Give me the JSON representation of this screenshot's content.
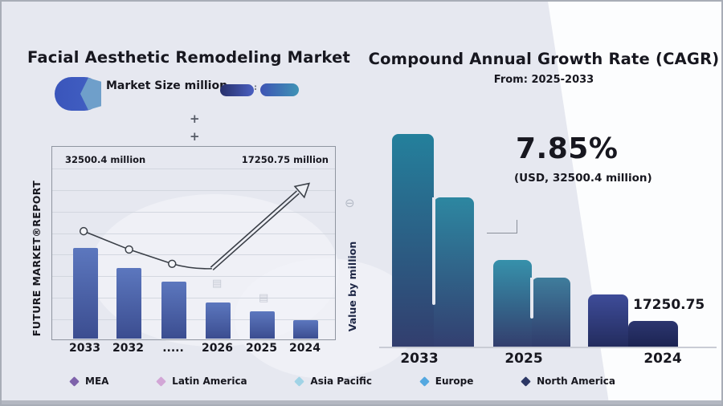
{
  "infographic": {
    "left": {
      "title": "Facial Aesthetic Remodeling Market",
      "market_size_label": "Market Size million",
      "annotation_left": "32500.4 million",
      "annotation_right": "17250.75 million",
      "watermark_vertical": "FUTURE MARKET®REPORT",
      "ylabel": "Value by million",
      "plus_glyph": "+",
      "table_icon_glyph": "▤",
      "circled_minus_glyph": "⊖"
    },
    "right": {
      "title": "Compound Annual Growth Rate (CAGR)",
      "subtitle": "From: 2025-2033",
      "cagr_value": "7.85%",
      "cagr_context": "(USD, 32500.4 million)",
      "value_2024_label": "17250.75"
    },
    "legend": [
      {
        "label": "MEA",
        "color": "#7e62ab"
      },
      {
        "label": "Latin America",
        "color": "#d2a6d6"
      },
      {
        "label": "Asia Pacific",
        "color": "#a0d3e6"
      },
      {
        "label": "Europe",
        "color": "#54a8e0"
      },
      {
        "label": "North America",
        "color": "#2c3765"
      }
    ]
  },
  "chart_data": [
    {
      "type": "bar",
      "title": "Facial Aesthetic Remodeling Market",
      "xlabel": "",
      "ylabel": "Value by million",
      "categories": [
        "2033",
        "2032",
        ".....",
        "2026",
        "2025",
        "2024"
      ],
      "values": [
        113,
        88,
        71,
        45,
        34,
        23
      ],
      "values_unit": "relative height (axis unlabeled, estimated from pixels)",
      "annotations": [
        "32500.4 million",
        "17250.75 million"
      ],
      "grid": "horizontal, 8 lines",
      "overlay": "declining line with 3 circle markers ending in upward outlined growth arrow"
    },
    {
      "type": "bar",
      "title": "Compound Annual Growth Rate (CAGR)",
      "subtitle": "From: 2025-2033",
      "categories": [
        "2033",
        "2025",
        "2024"
      ],
      "series": [
        {
          "name": "bar-a",
          "values": [
            265,
            108,
            65
          ]
        },
        {
          "name": "bar-b",
          "values": [
            186,
            86,
            32
          ]
        }
      ],
      "values_unit": "relative height (estimated from pixels)",
      "known_values": {
        "2033": 32500.4,
        "2024": 17250.75
      },
      "cagr_percent": 7.85,
      "data_label": "17250.75",
      "legend_position": "bottom"
    }
  ],
  "colors": {
    "background": "#e6e8f0",
    "text": "#17171f",
    "left_bar": [
      "#5c77be",
      "#3b4d90"
    ],
    "trend_line": "#3a3f47",
    "right_groups": [
      [
        [
          "#24809c",
          "#323e6e"
        ],
        [
          "#2d87a1",
          "#333f70"
        ]
      ],
      [
        [
          "#3691ab",
          "#333e6d"
        ],
        [
          "#3f7d9c",
          "#303b6b"
        ]
      ],
      [
        [
          "#3e4c99",
          "#232c5e"
        ],
        [
          "#2c366f",
          "#1c2453"
        ]
      ]
    ]
  }
}
